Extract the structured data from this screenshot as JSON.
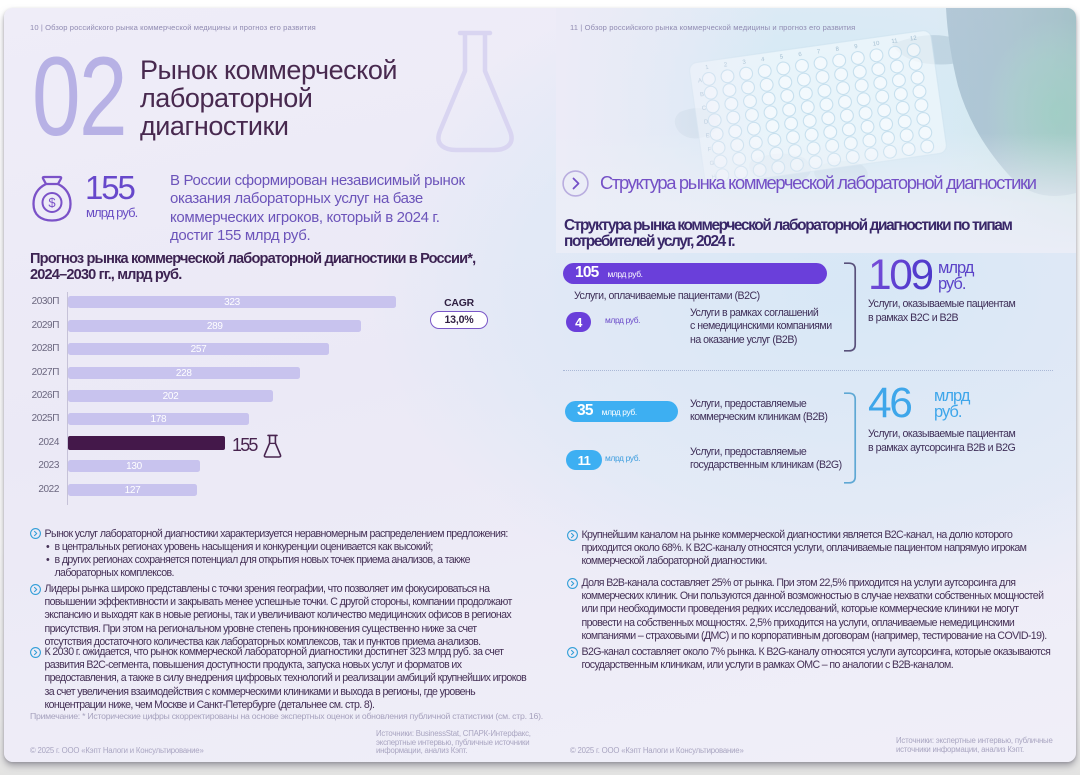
{
  "theme": {
    "bullet_accent": "#339fd8",
    "accent_purple": "#6a3fda",
    "accent_blue": "#3daff2",
    "page_background": "#ecebf7"
  },
  "page_left": {
    "header": "10 | Обзор российского рынка коммерческой медицины и прогноз его развития",
    "section_number": "02",
    "title": "Рынок коммерческой\nлабораторной\nдиагностики",
    "stat": {
      "value": "155",
      "unit": "млрд руб.",
      "icon_symbol": "$",
      "description": "В России сформирован независимый рынок\nоказания лабораторных услуг на базе\nкоммерческих игроков, который в 2024 г.\nдостиг 155 млрд руб."
    },
    "chart_title": "Прогноз рынка коммерческой лабораторной диагностики в России*,\n2024–2030 гг., млрд руб.",
    "cagr": {
      "label": "CAGR",
      "value": "13,0%"
    },
    "bullets": [
      {
        "text": "Рынок услуг лабораторной диагностики характеризуется неравномерным распределением предложения:",
        "subitems": [
          "в центральных регионах уровень насыщения и конкуренции оценивается как высокий;",
          "в других регионах сохраняется потенциал для открытия новых точек приема анализов, а также\nлабораторных комплексов."
        ]
      },
      {
        "text": "Лидеры рынка широко представлены с точки зрения географии, что позволяет им фокусироваться на\nповышении эффективности и закрывать менее успешные точки. С другой стороны, компании продолжают\nэкспансию и выходят как в новые регионы, так и увеличивают количество медицинских офисов в регионах\nприсутствия. При этом на региональном уровне степень проникновения существенно ниже за счет\nотсутствия достаточного количества как лабораторных комплексов, так и пунктов приема анализов."
      },
      {
        "text": "К 2030 г. ожидается, что рынок коммерческой лабораторной диагностики достигнет 323 млрд руб. за счет\nразвития B2C-сегмента, повышения доступности продукта, запуска новых услуг и форматов их\nпредоставления, а также в силу внедрения цифровых технологий и реализации амбиций крупнейших игроков\nза счет увеличения взаимодействия с коммерческими клиниками и выхода в регионы, где уровень\nконцентрации ниже, чем Москве и Санкт-Петербурге (детальнее см. стр. 8)."
      }
    ],
    "footnote": "Примечание: * Исторические цифры скорректированы на основе экспертных оценок и обновления публичной статистики (см. стр. 16).",
    "footer_copyright": "© 2025 г.  ООО «Кэпт Налоги и Консультирование»",
    "footer_sources": "Источники: BusinessStat, СПАРК-Интерфакс,\nэкспертные интервью, публичные источники\nинформации, анализ Кэпт."
  },
  "page_right": {
    "header": "11 | Обзор российского рынка коммерческой медицины и прогноз его развития",
    "photo": {
      "plate_row_labels": "ABCDEFGH",
      "plate_column_labels": [
        "1",
        "2",
        "3",
        "4",
        "5",
        "6",
        "7",
        "8",
        "9",
        "10",
        "11",
        "12"
      ]
    },
    "section_heading": "Структура рынка коммерческой лабораторной диагностики",
    "subtitle": "Структура рынка коммерческой лабораторной диагностики по типам\nпотребителей услуг, 2024 г.",
    "bullets": [
      {
        "text": "Крупнейшим каналом на рынке коммерческой диагностики является B2C-канал, на долю которого\nприходится около 68%. К B2C-каналу относятся услуги, оплачиваемые пациентом напрямую игрокам\nкоммерческой лабораторной диагностики."
      },
      {
        "text": "Доля B2B-канала составляет 25% от рынка. При этом 22,5% приходится на услуги аутсорсинга для\nкоммерческих клиник. Они пользуются данной возможностью в случае нехватки собственных мощностей\nили при необходимости проведения редких исследований, которые коммерческие клиники не могут\nпровести на собственных мощностях. 2,5% приходится на услуги, оплачиваемые немедицинскими\nкомпаниями – страховыми (ДМС) и по корпоративным договорам (например, тестирование на COVID-19)."
      },
      {
        "text": "B2G-канал составляет около 7% рынка. К B2G-каналу относятся услуги аутсорсинга, которые оказываются\nгосударственным клиникам, или услуги в рамках ОМС – по аналогии с B2B-каналом."
      }
    ],
    "footer_copyright": "© 2025 г.  ООО «Кэпт Налоги и Консультирование»",
    "footer_sources": "Источники: экспертные интервью, публичные\nисточники информации, анализ Кэпт."
  },
  "chart_data": [
    {
      "type": "bar",
      "orientation": "horizontal",
      "title": "Прогноз рынка коммерческой лабораторной диагностики в России, 2024–2030 гг., млрд руб.",
      "categories": [
        "2030П",
        "2029П",
        "2028П",
        "2027П",
        "2026П",
        "2025П",
        "2024",
        "2023",
        "2022"
      ],
      "values": [
        323,
        289,
        257,
        228,
        202,
        178,
        155,
        130,
        127
      ],
      "highlight_category": "2024",
      "cagr": "13,0%",
      "xlim": [
        0,
        340
      ],
      "bar_color": "#c8c3ee",
      "highlight_color": "#44184a"
    },
    {
      "type": "bar",
      "orientation": "horizontal",
      "title": "Структура рынка коммерческой лабораторной диагностики по типам потребителей услуг, 2024 г.",
      "unit": "млрд руб.",
      "groups": [
        {
          "accent": "#6a3fda",
          "items": [
            {
              "value": "105",
              "label": "Услуги, оплачиваемые пациентами (B2C)"
            },
            {
              "value": "4",
              "label": "Услуги в рамках соглашений\nс немедицинскими компаниями\nна оказание услуг (B2B)"
            }
          ],
          "total": {
            "value": "109",
            "unit": "млрд руб.",
            "label": "Услуги, оказываемые пациентам\nв рамках B2C и B2B"
          }
        },
        {
          "accent": "#3daff2",
          "items": [
            {
              "value": "35",
              "label": "Услуги, предоставляемые\nкоммерческим клиникам (B2B)"
            },
            {
              "value": "11",
              "label": "Услуги, предоставляемые\nгосударственным клиникам (B2G)"
            }
          ],
          "total": {
            "value": "46",
            "unit": "млрд руб.",
            "label": "Услуги, оказываемые пациентам\nв рамках аутсорсинга B2B и B2G"
          }
        }
      ]
    }
  ]
}
